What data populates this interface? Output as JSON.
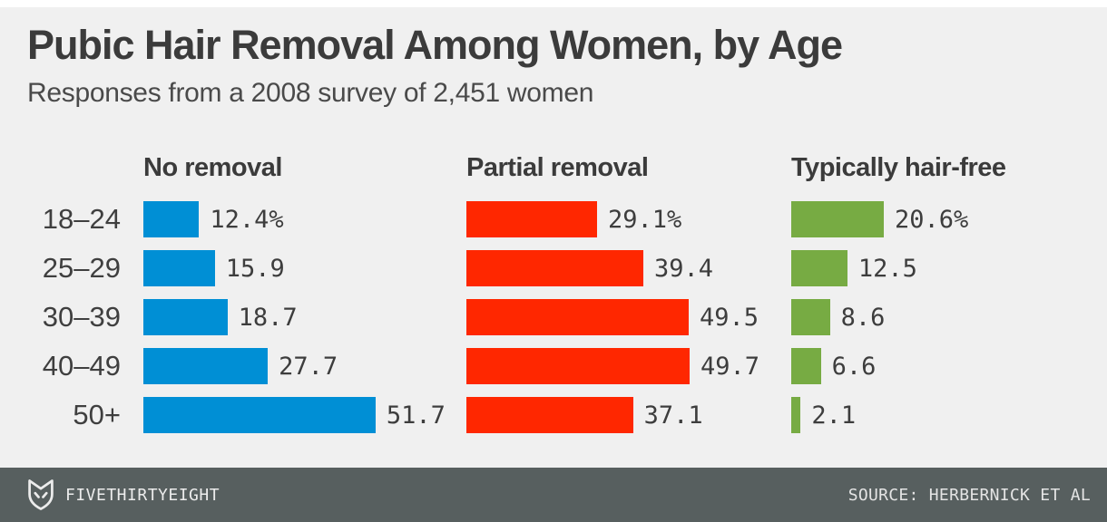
{
  "title": "Pubic Hair Removal Among Women, by Age",
  "subtitle": "Responses from a 2008 survey of 2,451 women",
  "chart_data": {
    "type": "bar",
    "orientation": "horizontal",
    "categories": [
      "18–24",
      "25–29",
      "30–39",
      "40–49",
      "50+"
    ],
    "series": [
      {
        "name": "No removal",
        "color": "#008fd5",
        "values": [
          12.4,
          15.9,
          18.7,
          27.7,
          51.7
        ]
      },
      {
        "name": "Partial removal",
        "color": "#ff2700",
        "values": [
          29.1,
          39.4,
          49.5,
          49.7,
          37.1
        ]
      },
      {
        "name": "Typically hair-free",
        "color": "#77ab43",
        "values": [
          20.6,
          12.5,
          8.6,
          6.6,
          2.1
        ]
      }
    ],
    "unit": "percent",
    "value_suffix_first_row": "%",
    "xlim": [
      0,
      55
    ],
    "grid": false,
    "legend": "column-headers"
  },
  "colors": {
    "background": "#f0f0f0",
    "top_strip": "#ffffff",
    "footer_bg": "#575f5f",
    "bar_blue": "#008fd5",
    "bar_red": "#ff2700",
    "bar_green": "#77ab43",
    "text_dark": "#3b3b3b"
  },
  "footer": {
    "logo_icon": "fivethirtyeight-fox-icon",
    "brand": "FIVETHIRTYEIGHT",
    "source": "SOURCE: HERBERNICK ET AL"
  }
}
